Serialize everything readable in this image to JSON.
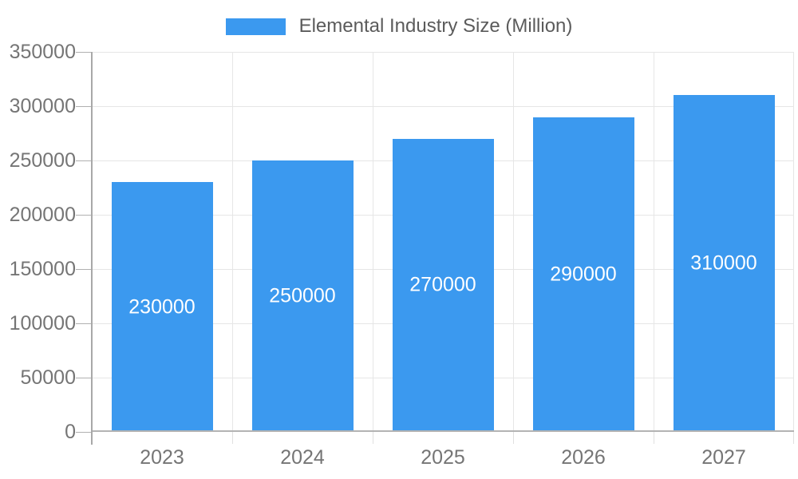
{
  "page": {
    "background": "#ffffff"
  },
  "legend": {
    "label": "Elemental Industry Size (Million)",
    "swatch_color": "#3b99ef"
  },
  "chart_data": {
    "type": "bar",
    "title": "Elemental Industry Size (Million)",
    "categories": [
      "2023",
      "2024",
      "2025",
      "2026",
      "2027"
    ],
    "values": [
      230000,
      250000,
      270000,
      290000,
      310000
    ],
    "bar_labels": [
      "230000",
      "250000",
      "270000",
      "290000",
      "310000"
    ],
    "xlabel": "",
    "ylabel": "",
    "ylim": [
      0,
      350000
    ],
    "ytick_step": 50000,
    "ytick_labels": [
      "0",
      "50000",
      "100000",
      "150000",
      "200000",
      "250000",
      "300000",
      "350000"
    ],
    "grid": true,
    "legend_position": "top-center",
    "colors": {
      "bar": "#3b99ef",
      "bar_label": "#ffffff",
      "axis_text": "#757575",
      "legend_text": "#5b5b5b",
      "gridline": "#e6e6e6",
      "baseline": "#b3b3b3",
      "axis_line": "#a8a8a8",
      "boundary_tick": "#e0e0e0",
      "y_tick": "#b0b0b0"
    }
  }
}
